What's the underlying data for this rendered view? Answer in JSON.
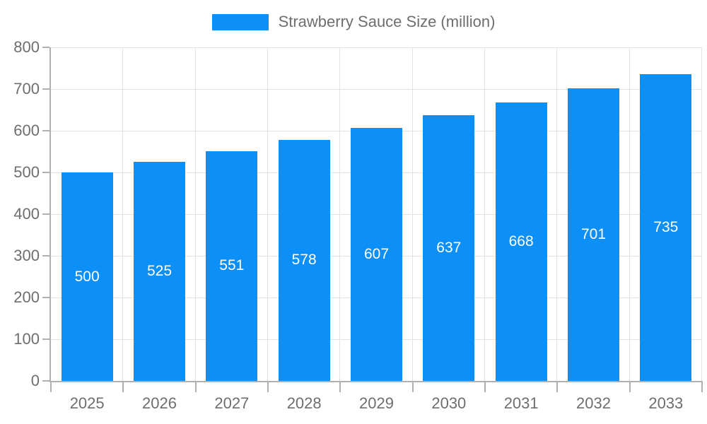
{
  "legend": {
    "label": "Strawberry Sauce Size (million)"
  },
  "colors": {
    "bar": "#0d8ff8",
    "bar_label": "#ffffff",
    "grid": "#e3e3e3",
    "axis": "#b0b0b0",
    "tick": "#b0b0b0",
    "axis_label": "#6e6e6e",
    "legend_label": "#6e6e6e",
    "background": "#ffffff"
  },
  "chart_data": {
    "type": "bar",
    "title": "",
    "xlabel": "",
    "ylabel": "",
    "categories": [
      "2025",
      "2026",
      "2027",
      "2028",
      "2029",
      "2030",
      "2031",
      "2032",
      "2033"
    ],
    "series": [
      {
        "name": "Strawberry Sauce Size (million)",
        "values": [
          500,
          525,
          551,
          578,
          607,
          637,
          668,
          701,
          735
        ]
      }
    ],
    "ylim": [
      0,
      800
    ],
    "yticks": [
      0,
      100,
      200,
      300,
      400,
      500,
      600,
      700,
      800
    ],
    "grid": true,
    "legend_position": "top",
    "data_labels": "inside-center"
  }
}
